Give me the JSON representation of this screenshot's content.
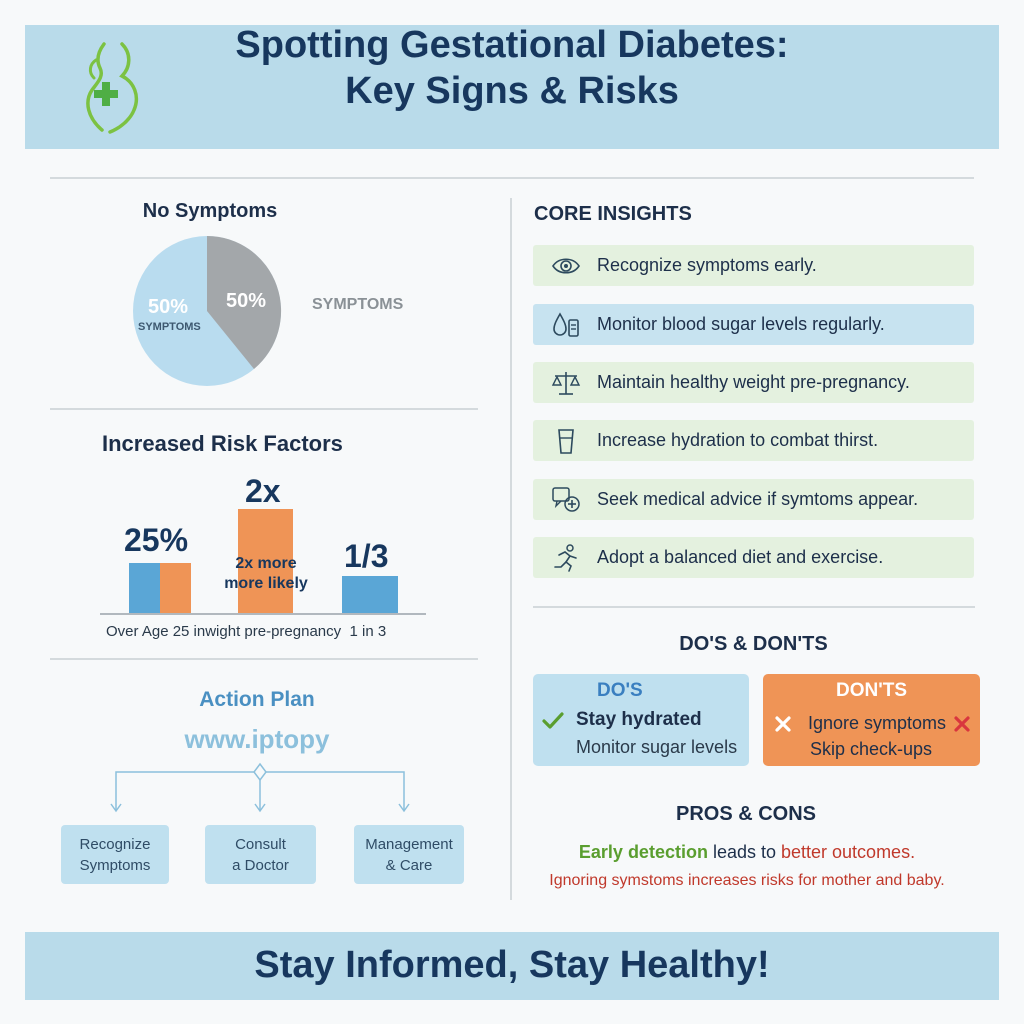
{
  "header": {
    "title_line1": "Spotting Gestational Diabetes:",
    "title_line2": "Key Signs & Risks"
  },
  "pie": {
    "title": "No Symptoms",
    "left_pct": "50%",
    "left_label": "SYMPTOMS",
    "right_pct": "50%",
    "side_label": "SYMPTOMS"
  },
  "chart_data": {
    "type": "bar",
    "title": "Increased Risk Factors",
    "categories": [
      "Over Age 25",
      "inwight pre-pregnancy",
      "1 in 3"
    ],
    "bar_labels": [
      "25%",
      "2x",
      "1/3"
    ],
    "inner_label": "2x more more likely",
    "colors": {
      "blue": "#5aa6d6",
      "orange": "#ef9456"
    }
  },
  "risk": {
    "title": "Increased Risk Factors",
    "val1": "25%",
    "val2": "2x",
    "val2_inner_line1": "2x more",
    "val2_inner_line2": "more likely",
    "val3": "1/3",
    "axis_text": "Over Age 25 inwight pre-pregnancy  1 in 3"
  },
  "action_plan": {
    "title": "Action Plan",
    "url": "www.iptopy",
    "steps": [
      {
        "line1": "Recognize",
        "line2": "Symptoms"
      },
      {
        "line1": "Consult",
        "line2": "a Doctor"
      },
      {
        "line1": "Management",
        "line2": "& Care"
      }
    ]
  },
  "core": {
    "title": "CORE INSIGHTS",
    "items": [
      {
        "text": "Recognize symptoms early.",
        "icon": "eye-icon",
        "bg": "green"
      },
      {
        "text": "Monitor blood sugar levels regularly.",
        "icon": "blood-drop-meter-icon",
        "bg": "blue"
      },
      {
        "text": "Maintain healthy weight pre-pregnancy.",
        "icon": "scale-icon",
        "bg": "green"
      },
      {
        "text": "Increase hydration to combat thirst.",
        "icon": "glass-icon",
        "bg": "green"
      },
      {
        "text": "Seek medical advice if symtoms appear.",
        "icon": "medical-chat-icon",
        "bg": "green"
      },
      {
        "text": "Adopt a balanced diet and exercise.",
        "icon": "runner-icon",
        "bg": "green"
      }
    ]
  },
  "dos_donts": {
    "title": "DO'S & DON'TS",
    "dos_head": "DO'S",
    "dos_1": "Stay hydrated",
    "dos_2": "Monitor sugar levels",
    "donts_head": "DON'TS",
    "donts_1": "Ignore symptoms",
    "donts_2": "Skip check-ups"
  },
  "pros_cons": {
    "title": "PROS & CONS",
    "line1_a": "Early detection",
    "line1_b": " leads to ",
    "line1_c": "better outcomes.",
    "line2": "Ignoring symstoms increases risks for mother and baby."
  },
  "footer": {
    "text": "Stay Informed, Stay Healthy!"
  },
  "colors": {
    "header_bg": "#b9dbea",
    "navy": "#17375e",
    "green": "#5a9e2f",
    "red": "#c0392b",
    "orange": "#ef9456"
  }
}
